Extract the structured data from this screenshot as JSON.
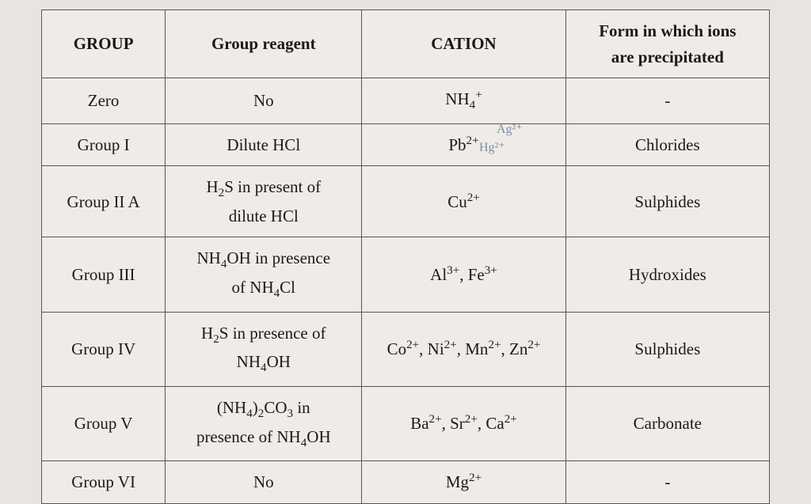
{
  "table": {
    "headers": {
      "c1": "GROUP",
      "c2": "Group reagent",
      "c3": "CATION",
      "c4_line1": "Form in which ions",
      "c4_line2": "are precipitated"
    },
    "rows": [
      {
        "group": "Zero",
        "reagent": "No",
        "cation_html": "NH<sub>4</sub><sup>+</sup>",
        "form": "-"
      },
      {
        "group": "Group I",
        "reagent": "Dilute HCl",
        "cation_html": "Pb<sup>2+</sup>",
        "form": "Chlorides"
      },
      {
        "group": "Group II A",
        "reagent_html": "H<sub>2</sub>S in present of<br>dilute HCl",
        "cation_html": "Cu<sup>2+</sup>",
        "form": "Sulphides"
      },
      {
        "group": "Group III",
        "reagent_html": "NH<sub>4</sub>OH in presence<br>of NH<sub>4</sub>Cl",
        "cation_html": "Al<sup>3+</sup>, Fe<sup>3+</sup>",
        "form": "Hydroxides"
      },
      {
        "group": "Group IV",
        "reagent_html": "H<sub>2</sub>S in presence of<br>NH<sub>4</sub>OH",
        "cation_html": "Co<sup>2+</sup>, Ni<sup>2+</sup>, Mn<sup>2+</sup>, Zn<sup>2+</sup>",
        "form": "Sulphides"
      },
      {
        "group": "Group V",
        "reagent_html": "(NH<sub>4</sub>)<sub>2</sub>CO<sub>3</sub> in<br>presence of NH<sub>4</sub>OH",
        "cation_html": "Ba<sup>2+</sup>, Sr<sup>2+</sup>, Ca<sup>2+</sup>",
        "form": "Carbonate"
      },
      {
        "group": "Group VI",
        "reagent": "No",
        "cation_html": "Mg<sup>2+</sup>",
        "form": "-"
      }
    ],
    "handwriting": {
      "ag": "Ag²⁺",
      "hg": "Hg²⁺"
    }
  }
}
